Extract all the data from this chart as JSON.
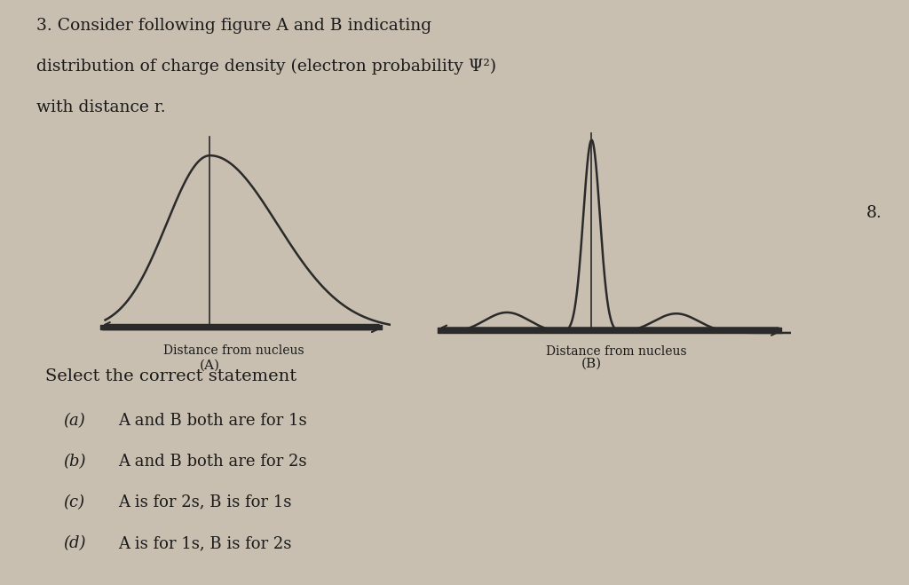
{
  "background_color": "#c8bfb0",
  "text_color": "#1a1a1a",
  "curve_color": "#2a2a2a",
  "axis_color": "#2a2a2a",
  "fig_A_label": "(A)",
  "fig_B_label": "(B)",
  "xlabel_A": "Distance from nucleus",
  "xlabel_B": "Distance from nucleus",
  "question_label": "Select the correct statement",
  "options": [
    [
      "(a)",
      "A and B both are for 1s"
    ],
    [
      "(b)",
      "A and B both are for 2s"
    ],
    [
      "(c)",
      "A is for 2s, B is for 1s"
    ],
    [
      "(d)",
      "A is for 1s, B is for 2s"
    ]
  ],
  "header_line1": "3. Consider following figure A and B indicating",
  "header_line2": "distribution of charge density (electron probability Ψ²)",
  "header_line3": "with distance r.",
  "number_label": "8."
}
